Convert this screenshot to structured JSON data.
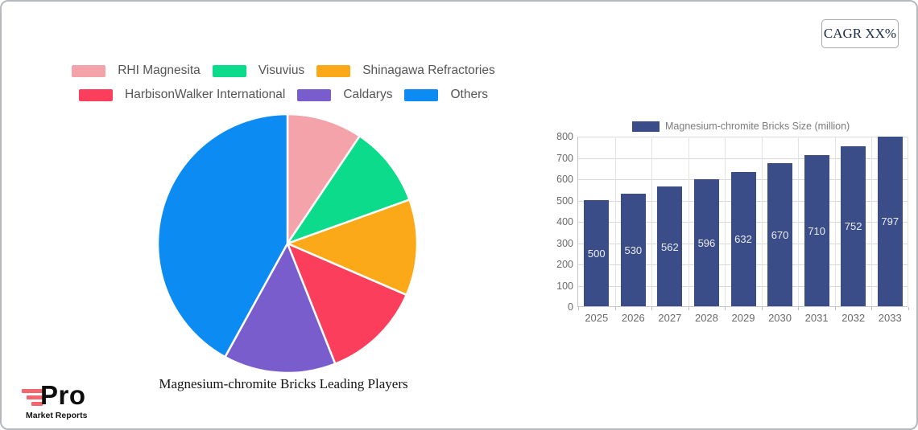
{
  "cagr": {
    "label": "CAGR XX%"
  },
  "logo": {
    "name": "Pro",
    "subtitle": "Market Reports",
    "bar_color": "#f3656f"
  },
  "colors": {
    "bar_navy": "#3b4d88",
    "grid": "#d9d9d9",
    "axis_text": "#696969"
  },
  "chart_data": [
    {
      "type": "pie",
      "title": "Magnesium-chromite Bricks Leading Players",
      "legend_position": "top",
      "slices": [
        {
          "label": "RHI Magnesita",
          "value": 9.4,
          "color": "#f4a3ab"
        },
        {
          "label": "Visuvius",
          "value": 10.1,
          "color": "#0bdb8b"
        },
        {
          "label": "Shinagawa Refractories",
          "value": 12.0,
          "color": "#fba919"
        },
        {
          "label": "HarbisonWalker International",
          "value": 12.5,
          "color": "#fb3e5c"
        },
        {
          "label": "Caldarys",
          "value": 14.0,
          "color": "#7a5dcc"
        },
        {
          "label": "Others",
          "value": 42.0,
          "color": "#0c8cf2"
        }
      ]
    },
    {
      "type": "bar",
      "series_name": "Magnesium-chromite Bricks Size (million)",
      "categories": [
        "2025",
        "2026",
        "2027",
        "2028",
        "2029",
        "2030",
        "2031",
        "2032",
        "2033"
      ],
      "values": [
        500,
        530,
        562,
        596,
        632,
        670,
        710,
        752,
        797
      ],
      "ylim": [
        0,
        800
      ],
      "ytick_step": 100,
      "bar_color": "#3b4d88",
      "value_label_color": "rgba(255,255,255,0.9)",
      "grid": true,
      "legend_position": "top"
    }
  ]
}
